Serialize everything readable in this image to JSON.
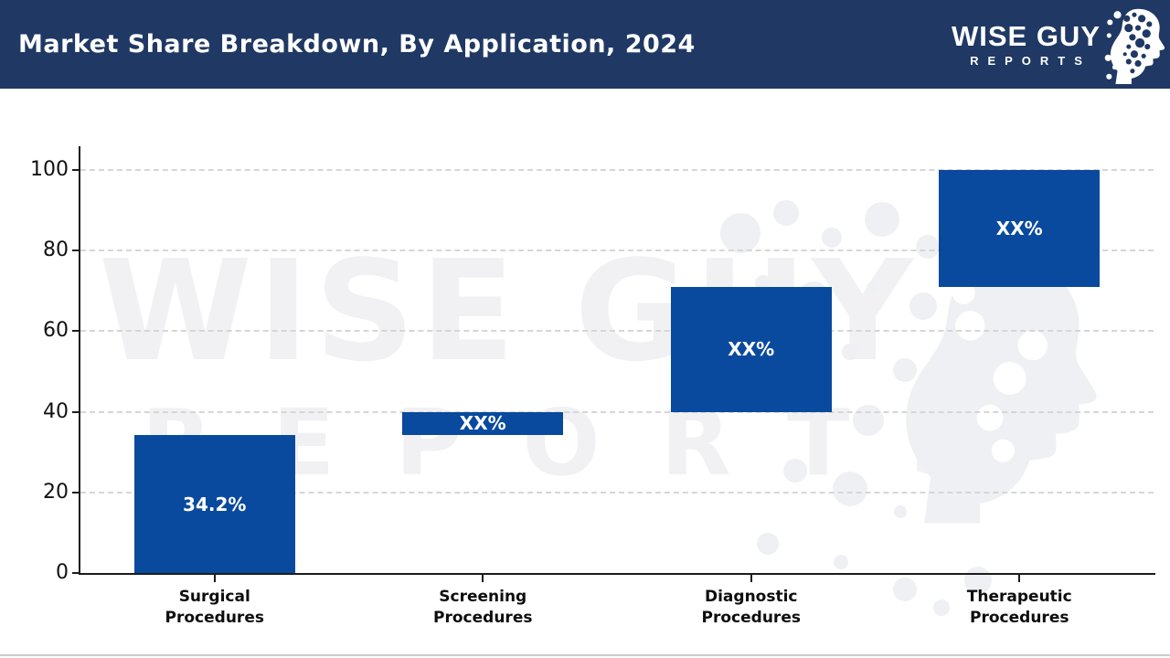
{
  "header": {
    "title": "Market Share Breakdown, By Application, 2024",
    "logo": {
      "line1": "WISE GUY",
      "line2": "REPORTS"
    }
  },
  "watermark": {
    "line1": "WISE GUY",
    "line2": "REPORTS"
  },
  "chart_data": {
    "type": "bar",
    "subtype": "waterfall",
    "title": "Market Share Breakdown, By Application, 2024",
    "categories": [
      "Surgical Procedures",
      "Screening Procedures",
      "Diagnostic Procedures",
      "Therapeutic Procedures"
    ],
    "segments": [
      {
        "category": "Surgical Procedures",
        "start": 0,
        "end": 34.2,
        "label": "34.2%"
      },
      {
        "category": "Screening Procedures",
        "start": 34.2,
        "end": 40,
        "label": "XX%"
      },
      {
        "category": "Diagnostic Procedures",
        "start": 40,
        "end": 71,
        "label": "XX%"
      },
      {
        "category": "Therapeutic Procedures",
        "start": 71,
        "end": 100,
        "label": "XX%"
      }
    ],
    "yticks": [
      0,
      20,
      40,
      60,
      80,
      100
    ],
    "ylim": [
      0,
      105
    ],
    "xlabel": "",
    "ylabel": "",
    "grid": true,
    "legend": false,
    "colors": {
      "bar": "#0a4a9e",
      "bar_label": "#ffffff",
      "axis": "#1c1c1c",
      "grid": "#d6d6d6",
      "header_bg": "#1f3864",
      "watermark": "#f1f1f4"
    }
  }
}
